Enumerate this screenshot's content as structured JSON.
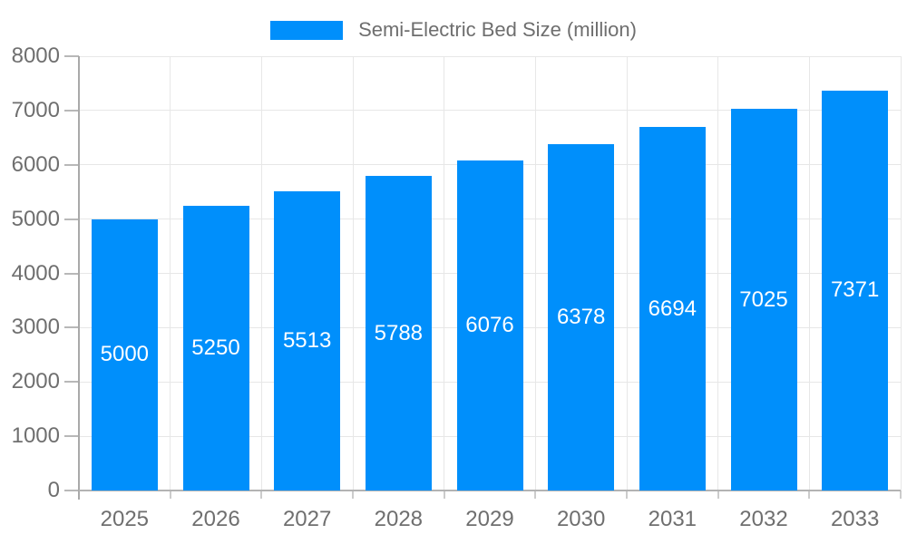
{
  "legend": {
    "label": "Semi-Electric Bed Size (million)"
  },
  "colors": {
    "bar": "#008FFB",
    "grid": "#E7E7E7",
    "axis_line": "#A9A9A9",
    "baseline": "#B3B3B3",
    "y_tick": "#B8B8B8",
    "x_tick": "#CCCCCC",
    "tick_label": "#6F6F6F",
    "legend_label": "#6E6E6E",
    "data_label": "#FFFFFF",
    "background": "#FFFFFF"
  },
  "chart_data": {
    "type": "bar",
    "title": "Semi-Electric Bed Size (million)",
    "categories": [
      "2025",
      "2026",
      "2027",
      "2028",
      "2029",
      "2030",
      "2031",
      "2032",
      "2033"
    ],
    "series": [
      {
        "name": "Semi-Electric Bed Size (million)",
        "values": [
          5000,
          5250,
          5513,
          5788,
          6076,
          6378,
          6694,
          7025,
          7371
        ]
      }
    ],
    "xlabel": "",
    "ylabel": "",
    "ylim": [
      0,
      8000
    ],
    "ytick_step": 1000,
    "ytick_labels": [
      "0",
      "1000",
      "2000",
      "3000",
      "4000",
      "5000",
      "6000",
      "7000",
      "8000"
    ],
    "grid": true,
    "legend_position": "top",
    "data_labels": "inside-center"
  }
}
